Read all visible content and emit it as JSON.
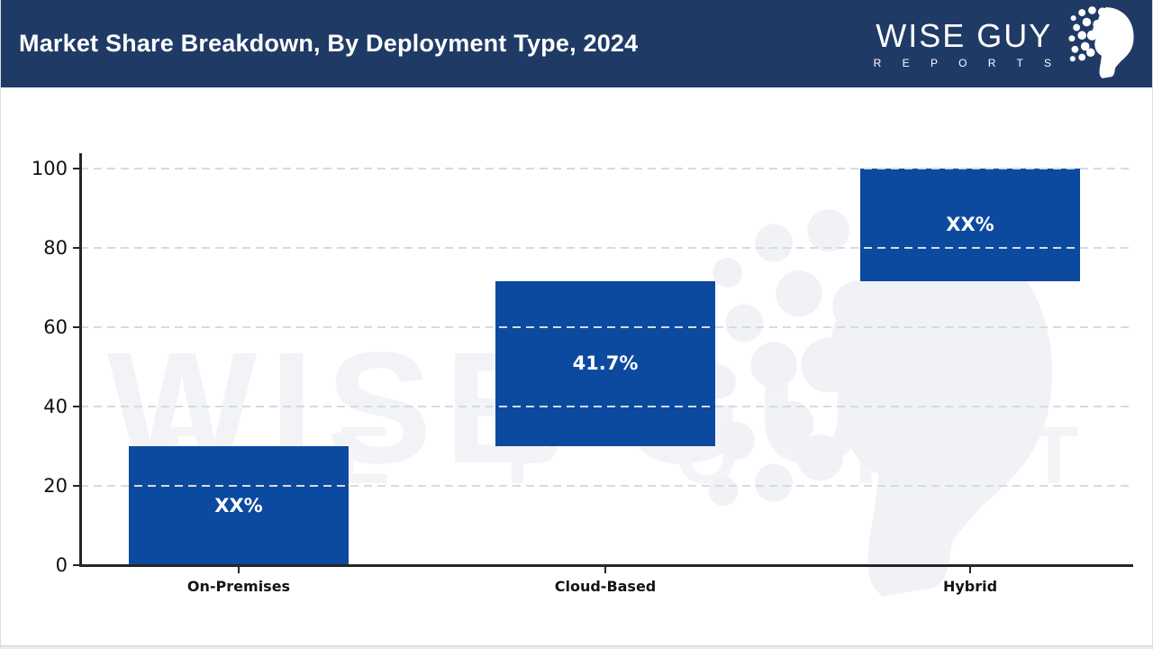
{
  "header": {
    "title": "Market Share Breakdown, By Deployment Type, 2024",
    "background_color": "#203A66",
    "logo": {
      "line1": "WISE GUY",
      "line2": "R E P O R T S"
    }
  },
  "watermark": {
    "line1": "WISE GUY",
    "line2": "R E P O R T S"
  },
  "colors": {
    "bar": "#0C4AA0",
    "axis": "#262626",
    "grid": "#D6DAE1",
    "value_label": "#FFFFFF",
    "header_bg": "#203A66"
  },
  "chart_data": {
    "type": "bar",
    "subtype": "floating-waterfall-percentage",
    "title": "Market Share Breakdown, By Deployment Type, 2024",
    "categories": [
      "On-Premises",
      "Cloud-Based",
      "Hybrid"
    ],
    "series": [
      {
        "name": "Market share by deployment type",
        "segments": [
          {
            "category": "On-Premises",
            "from": 0,
            "to": 30,
            "label": "XX%"
          },
          {
            "category": "Cloud-Based",
            "from": 30,
            "to": 71.7,
            "label": "41.7%"
          },
          {
            "category": "Hybrid",
            "from": 71.7,
            "to": 100,
            "label": "XX%"
          }
        ]
      }
    ],
    "xlabel": "",
    "ylabel": "",
    "yticks": [
      0,
      20,
      40,
      60,
      80,
      100
    ],
    "ylim": [
      0,
      104
    ],
    "grid": "horizontal dashed, drawn over bars",
    "legend": "none",
    "bar_color": "#0C4AA0",
    "value_label_color": "#FFFFFF"
  }
}
